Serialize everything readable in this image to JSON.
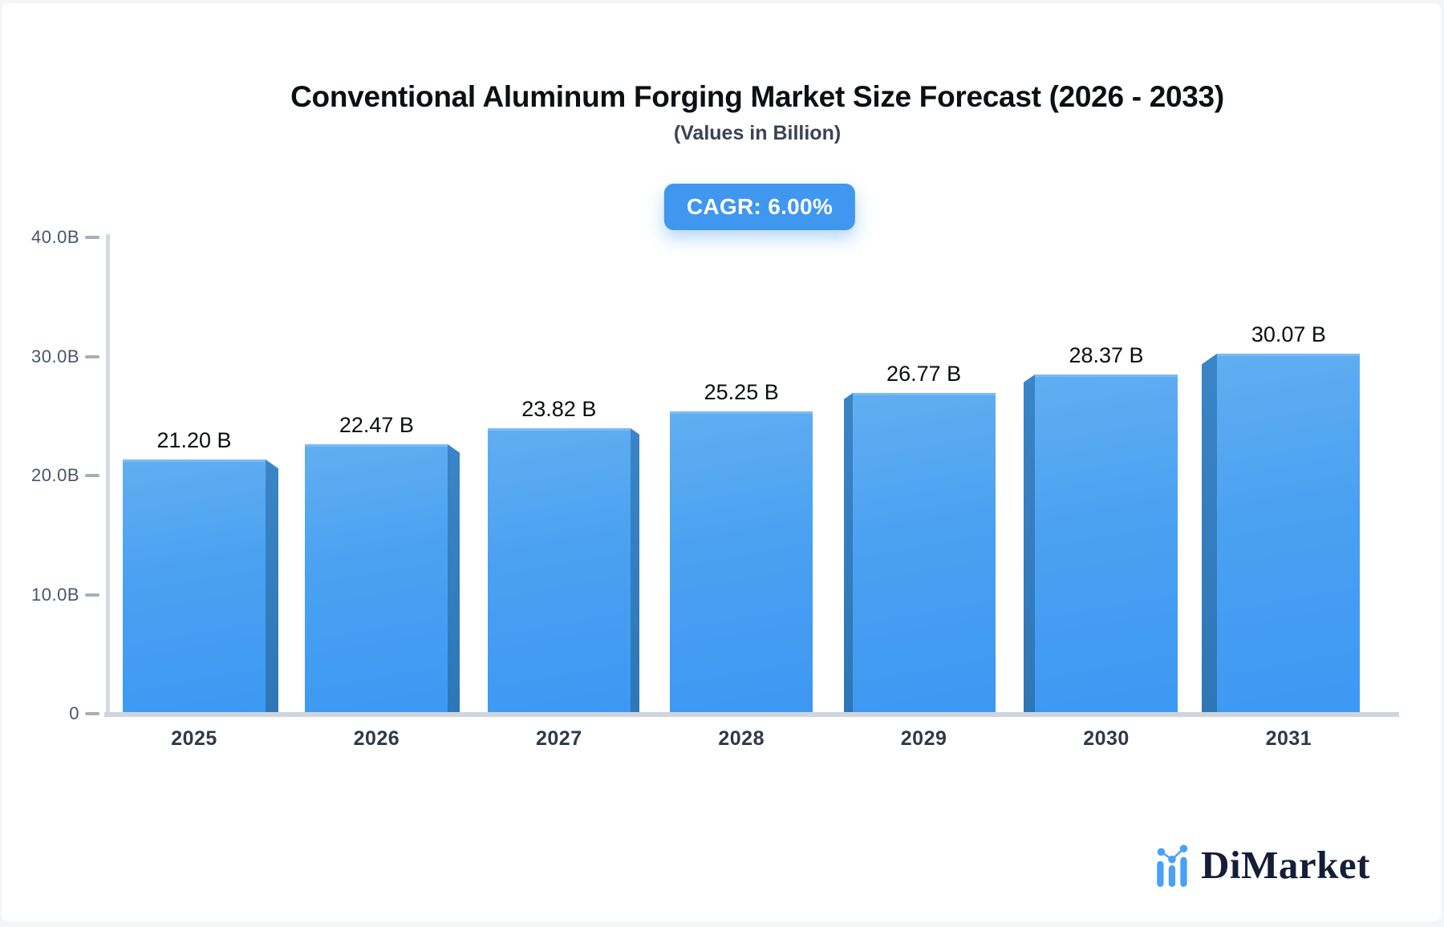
{
  "header": {
    "title": "Conventional Aluminum Forging Market Size Forecast (2026 - 2033)",
    "subtitle": "(Values in Billion)",
    "badge": "CAGR: 6.00%"
  },
  "chart_data": {
    "type": "bar",
    "title": "Conventional Aluminum Forging Market Size Forecast (2026 - 2033)",
    "subtitle": "(Values in Billion)",
    "categories": [
      "2025",
      "2026",
      "2027",
      "2028",
      "2029",
      "2030",
      "2031"
    ],
    "values": [
      21.2,
      22.47,
      23.82,
      25.25,
      26.77,
      28.37,
      30.07
    ],
    "value_labels": [
      "21.20 B",
      "22.47 B",
      "23.82 B",
      "25.25 B",
      "26.77 B",
      "28.37 B",
      "30.07 B"
    ],
    "xlabel": "",
    "ylabel": "",
    "ylim": [
      0,
      40
    ],
    "yticks": [
      {
        "label": "40.0B",
        "value": 40
      },
      {
        "label": "30.0B",
        "value": 30
      },
      {
        "label": "20.0B",
        "value": 20
      },
      {
        "label": "10.0B",
        "value": 10
      },
      {
        "label": "0",
        "value": 0
      }
    ],
    "grid": false,
    "legend": false,
    "bar_color": "#3f9af3",
    "bar_side_color": "#2f78ba",
    "style": "3d-extruded-bars, perspective toward center"
  },
  "footer": {
    "logo_text": "DiMarket",
    "logo_icon": "bar-line-chart-icon",
    "logo_color": "#4aa0f6"
  },
  "colors": {
    "badge_bg": "#3f97ef",
    "axis": "#d0d5dc",
    "text_dark": "#0c0f14"
  }
}
